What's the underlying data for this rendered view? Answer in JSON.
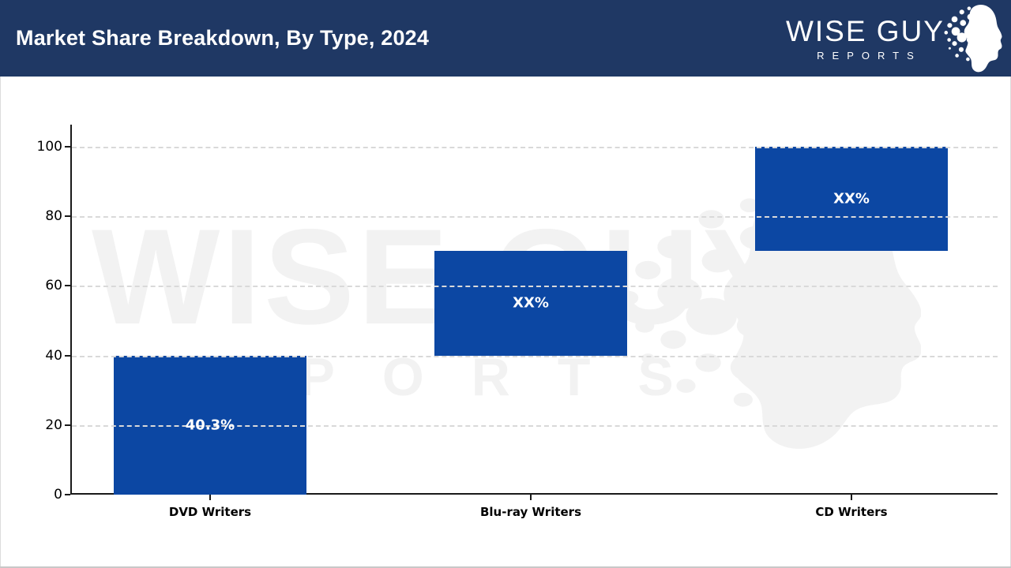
{
  "header": {
    "title": "Market Share Breakdown, By Type, 2024",
    "logo": {
      "line1": "WISE GUY",
      "line2": "REPORTS"
    }
  },
  "watermark": {
    "line1": "WISE GUY",
    "line2": "REPORTS"
  },
  "chart_data": {
    "type": "bar",
    "subtype": "floating_segment_bars",
    "title": "Market Share Breakdown, By Type, 2024",
    "categories": [
      "DVD Writers",
      "Blu-ray Writers",
      "CD Writers"
    ],
    "bars": [
      {
        "category": "DVD Writers",
        "start": 0,
        "end": 40,
        "label": "40.3%"
      },
      {
        "category": "Blu-ray Writers",
        "start": 40,
        "end": 70,
        "label": "XX%"
      },
      {
        "category": "CD Writers",
        "start": 70,
        "end": 100,
        "label": "XX%"
      }
    ],
    "ylim": [
      0,
      100
    ],
    "yticks": [
      0,
      20,
      40,
      60,
      80,
      100
    ],
    "grid": {
      "horizontal": true,
      "style": "dashed"
    },
    "colors": {
      "bar": "#0c47a3",
      "bar_label": "#ffffff",
      "header_bg": "#1f3864",
      "axis": "#1a1a1a",
      "gridline": "#d9d9d9",
      "watermark": "#f2f2f2"
    }
  }
}
